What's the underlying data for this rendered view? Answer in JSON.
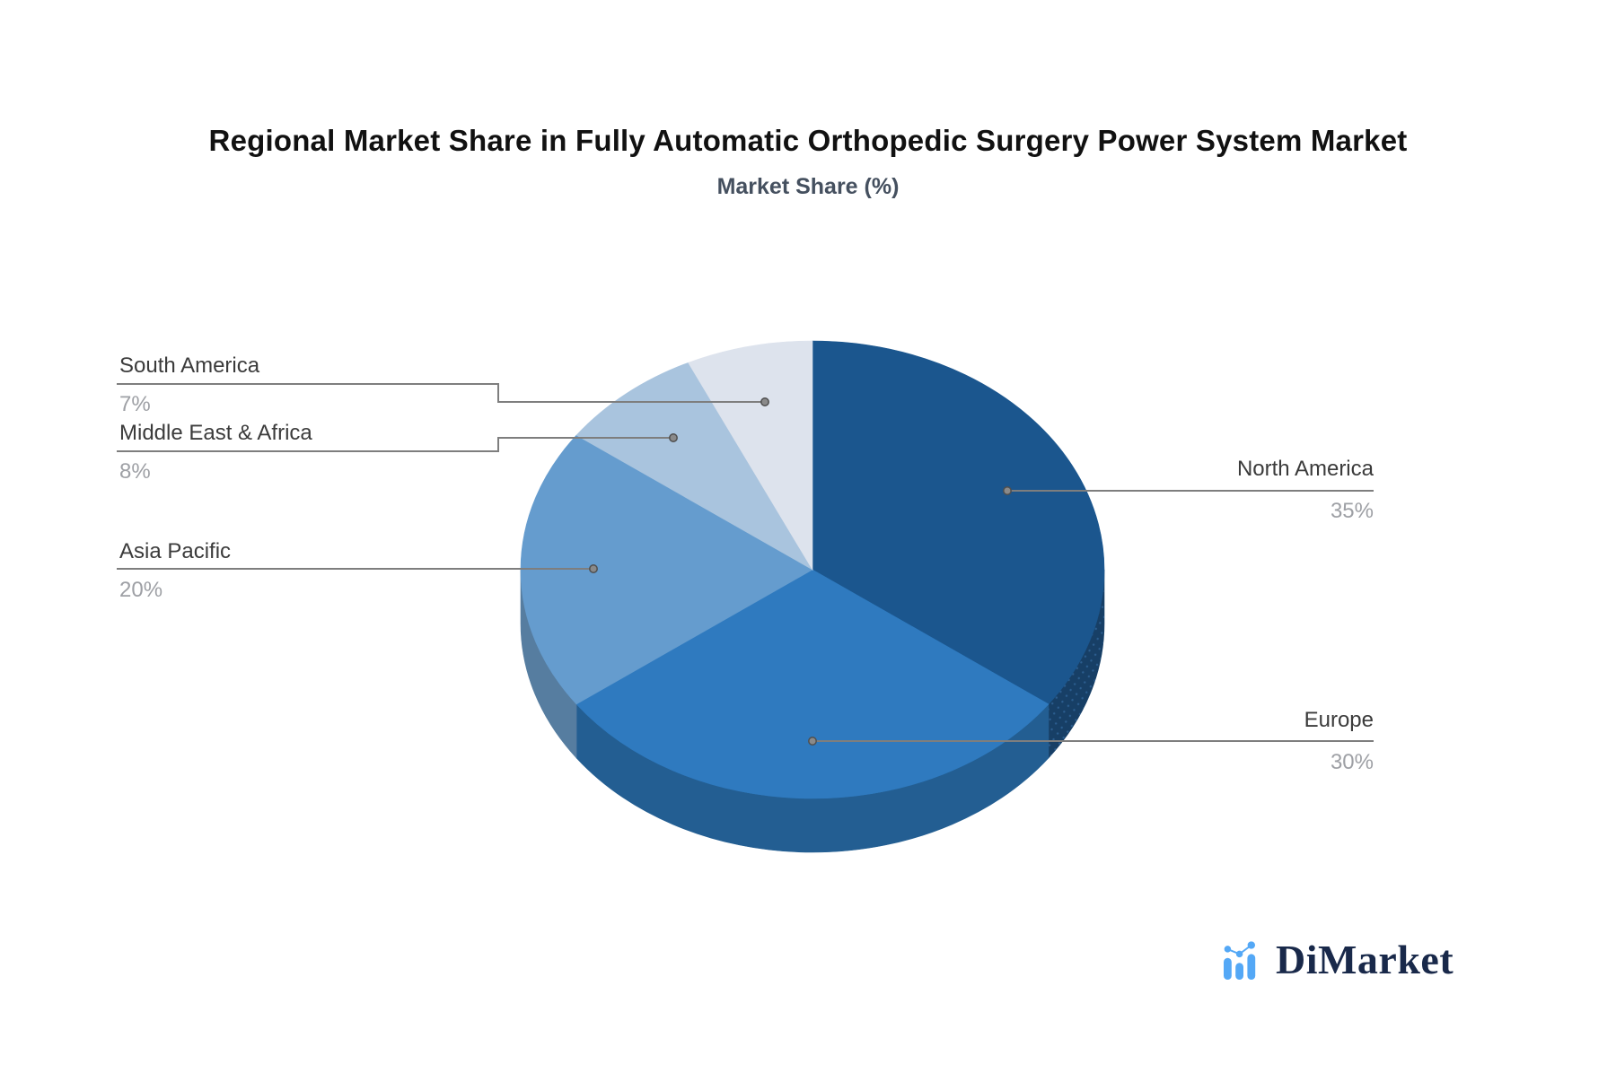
{
  "chart_data": {
    "type": "pie",
    "title": "Regional Market Share in Fully Automatic Orthopedic Surgery Power System Market",
    "subtitle": "Market Share (%)",
    "unit": "%",
    "order": "clockwise-from-top",
    "effect": "3d-depth",
    "legend_position": "callouts",
    "slices": [
      {
        "label": "North America",
        "value": 35,
        "display": "35%",
        "color": "#1B568E",
        "side_color": "#173F66"
      },
      {
        "label": "Europe",
        "value": 30,
        "display": "30%",
        "color": "#2F7ABF",
        "side_color": "#235E92"
      },
      {
        "label": "Asia Pacific",
        "value": 20,
        "display": "20%",
        "color": "#659CCE",
        "side_color": "#567DA0"
      },
      {
        "label": "Middle East & Africa",
        "value": 8,
        "display": "8%",
        "color": "#A9C4DE",
        "side_color": "#8FB0CE"
      },
      {
        "label": "South America",
        "value": 7,
        "display": "7%",
        "color": "#DDE3ED",
        "side_color": "#C3CFE0"
      }
    ]
  },
  "colors": {
    "title": "#111111",
    "subtitle": "#45505F",
    "label_text": "#3B3B3B",
    "value_text": "#9EA0A5",
    "leader_line": "#7E7E7E",
    "leader_dot": "#8A8A8A",
    "logo_blue": "#54A8F6",
    "logo_navy": "#19294A"
  },
  "logo": {
    "text": "DiMarket",
    "icon": "bar-chart-icon"
  }
}
